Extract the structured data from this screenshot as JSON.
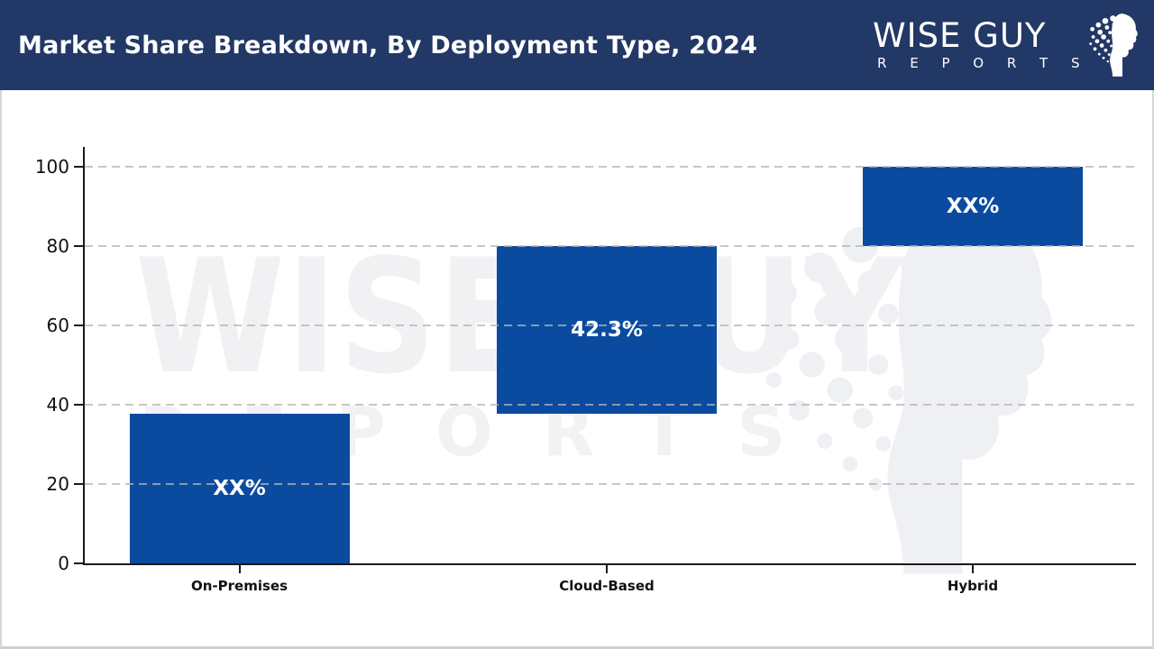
{
  "header": {
    "title": "Market Share Breakdown, By Deployment Type, 2024",
    "logo": {
      "name": "WISE GUY",
      "subtitle": "R E P O R T S",
      "face_icon": "dotted-head-profile-icon"
    }
  },
  "watermark": {
    "line1": "WISE GUY",
    "line2": "REPORTS",
    "face_icon": "dotted-head-profile-icon"
  },
  "colors": {
    "header_bg": "#223866",
    "bar": "#0a4ba0",
    "bar_label_text": "#ffffff",
    "axis": "#1a1a1a",
    "gridline": "#c4c4c8",
    "watermark": "#f1f1f4",
    "background": "#ffffff"
  },
  "chart_data": {
    "type": "bar",
    "subtype": "floating-segment (waterfall-style, segments stack to 100)",
    "title": "Market Share Breakdown, By Deployment Type, 2024",
    "categories": [
      "On-Premises",
      "Cloud-Based",
      "Hybrid"
    ],
    "segments": [
      {
        "category": "On-Premises",
        "start": 0,
        "end": 37.7,
        "value": 37.7,
        "label": "XX%"
      },
      {
        "category": "Cloud-Based",
        "start": 37.7,
        "end": 80,
        "value": 42.3,
        "label": "42.3%"
      },
      {
        "category": "Hybrid",
        "start": 80,
        "end": 100,
        "value": 20,
        "label": "XX%"
      }
    ],
    "xlabel": "",
    "ylabel": "",
    "yticks": [
      0,
      20,
      40,
      60,
      80,
      100
    ],
    "ylim": [
      0,
      105
    ],
    "grid": "horizontal dashed, drawn above bars",
    "legend": "none"
  }
}
